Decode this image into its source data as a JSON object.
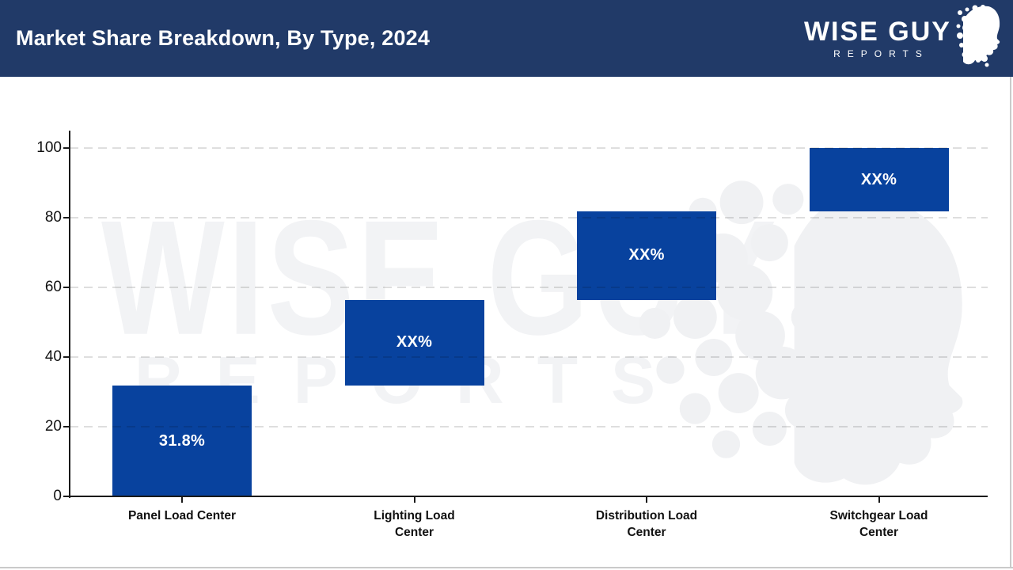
{
  "header": {
    "title": "Market Share Breakdown, By Type, 2024",
    "logo": {
      "line1": "WISE GUY",
      "line2": "REPORTS"
    }
  },
  "watermark": {
    "line1": "WISE GUY",
    "line2": "REPORTS"
  },
  "colors": {
    "header_bg": "#213a68",
    "bar": "#08429e",
    "bar_label_text": "#ffffff",
    "axis": "#1a1a1a",
    "grid": "rgba(0,0,0,0.13)",
    "watermark": "#f2f3f5",
    "frame_line": "#cacaca"
  },
  "chart_data": {
    "type": "bar",
    "subtype": "waterfall",
    "title": "Market Share Breakdown, By Type, 2024",
    "categories": [
      "Panel Load Center",
      "Lighting Load Center",
      "Distribution Load Center",
      "Switchgear Load Center"
    ],
    "tick_labels": [
      [
        "Panel Load Center"
      ],
      [
        "Lighting Load",
        "Center"
      ],
      [
        "Distribution Load",
        "Center"
      ],
      [
        "Switchgear Load",
        "Center"
      ]
    ],
    "segments": [
      {
        "category": "Panel Load Center",
        "start": 0,
        "end": 31.8,
        "label": "31.8%"
      },
      {
        "category": "Lighting Load Center",
        "start": 31.8,
        "end": 56.4,
        "label": "XX%"
      },
      {
        "category": "Distribution Load Center",
        "start": 56.4,
        "end": 81.8,
        "label": "XX%"
      },
      {
        "category": "Switchgear Load Center",
        "start": 81.8,
        "end": 100,
        "label": "XX%"
      }
    ],
    "ylim": [
      0,
      100
    ],
    "yticks": [
      0,
      20,
      40,
      60,
      80,
      100
    ],
    "xlabel": "",
    "ylabel": "",
    "grid": "horizontal-dashed",
    "legend": "none"
  }
}
